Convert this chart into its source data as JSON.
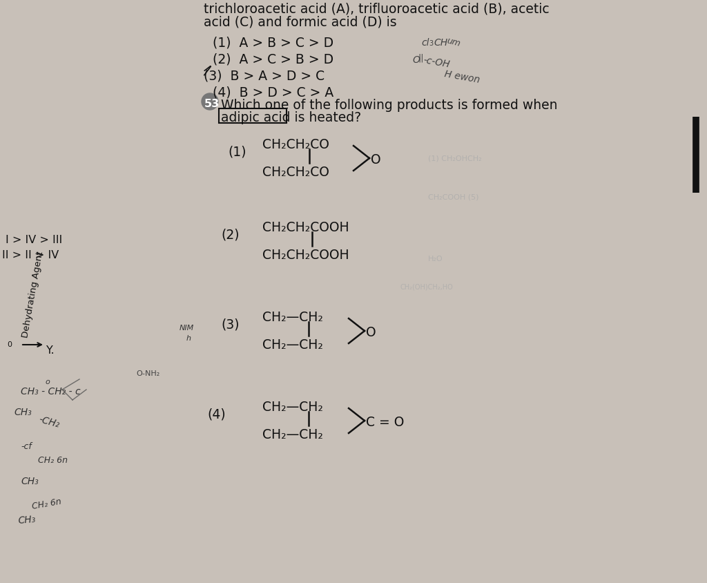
{
  "bg_color": "#c8c0b8",
  "text_color": "#111111",
  "text_color_faint": "#888888",
  "font_size_main": 13.5,
  "font_size_small": 11.5,
  "font_size_tiny": 9,
  "structures": {
    "s1_label": "(1)",
    "s1_top": "CH₂CH₂CO",
    "s1_bot": "CH₂CH₂CO",
    "s1_O": "O",
    "s2_label": "(2)",
    "s2_top": "CH₂CH₂COOH",
    "s2_bot": "CH₂CH₂COOH",
    "s3_label": "(3)",
    "s3_top": "CH₂—CH₂",
    "s3_bot": "CH₂—CH₂",
    "s3_O": "O",
    "s4_label": "(4)",
    "s4_top": "CH₂—CH₂",
    "s4_bot": "CH₂—CH₂",
    "s4_C": "C = O"
  }
}
